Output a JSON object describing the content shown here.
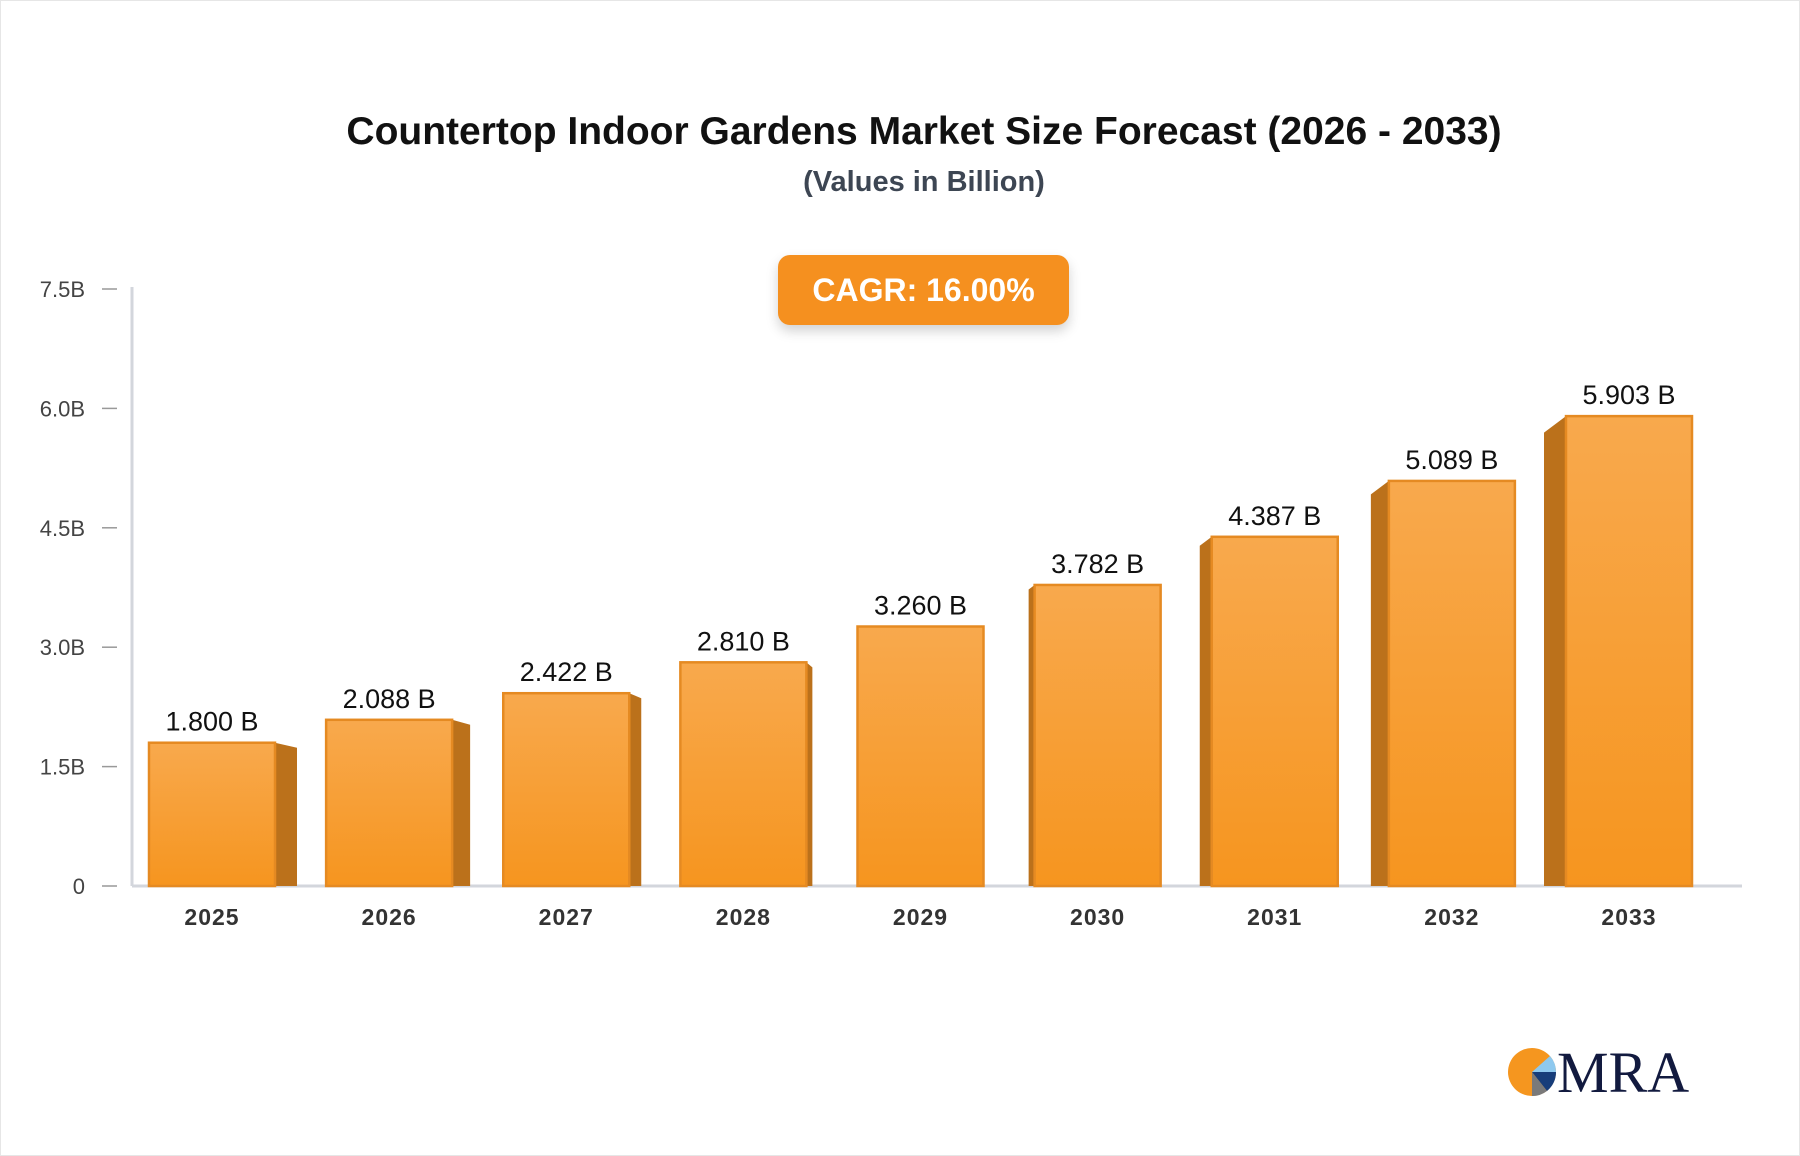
{
  "chart_data": {
    "type": "bar",
    "title": "Countertop Indoor Gardens Market Size Forecast (2026 - 2033)",
    "subtitle": "(Values in Billion)",
    "categories": [
      "2025",
      "2026",
      "2027",
      "2028",
      "2029",
      "2030",
      "2031",
      "2032",
      "2033"
    ],
    "values": [
      1.8,
      2.088,
      2.422,
      2.81,
      3.26,
      3.782,
      4.387,
      5.089,
      5.903
    ],
    "data_labels": [
      "1.800 B",
      "2.088 B",
      "2.422 B",
      "2.810 B",
      "3.260 B",
      "3.782 B",
      "4.387 B",
      "5.089 B",
      "5.903 B"
    ],
    "yticks": [
      0,
      1.5,
      3.0,
      4.5,
      6.0,
      7.5
    ],
    "ytick_labels": [
      "0",
      "1.5B",
      "3.0B",
      "4.5B",
      "6.0B",
      "7.5B"
    ],
    "ylim": [
      0,
      7.5
    ],
    "xlabel": "",
    "ylabel": "",
    "grid": false,
    "legend": "none",
    "bar_color": "#f7a040",
    "bar_side_color": "#bb711b"
  },
  "cagr_label": "CAGR: 16.00%",
  "logo_text": "MRA"
}
